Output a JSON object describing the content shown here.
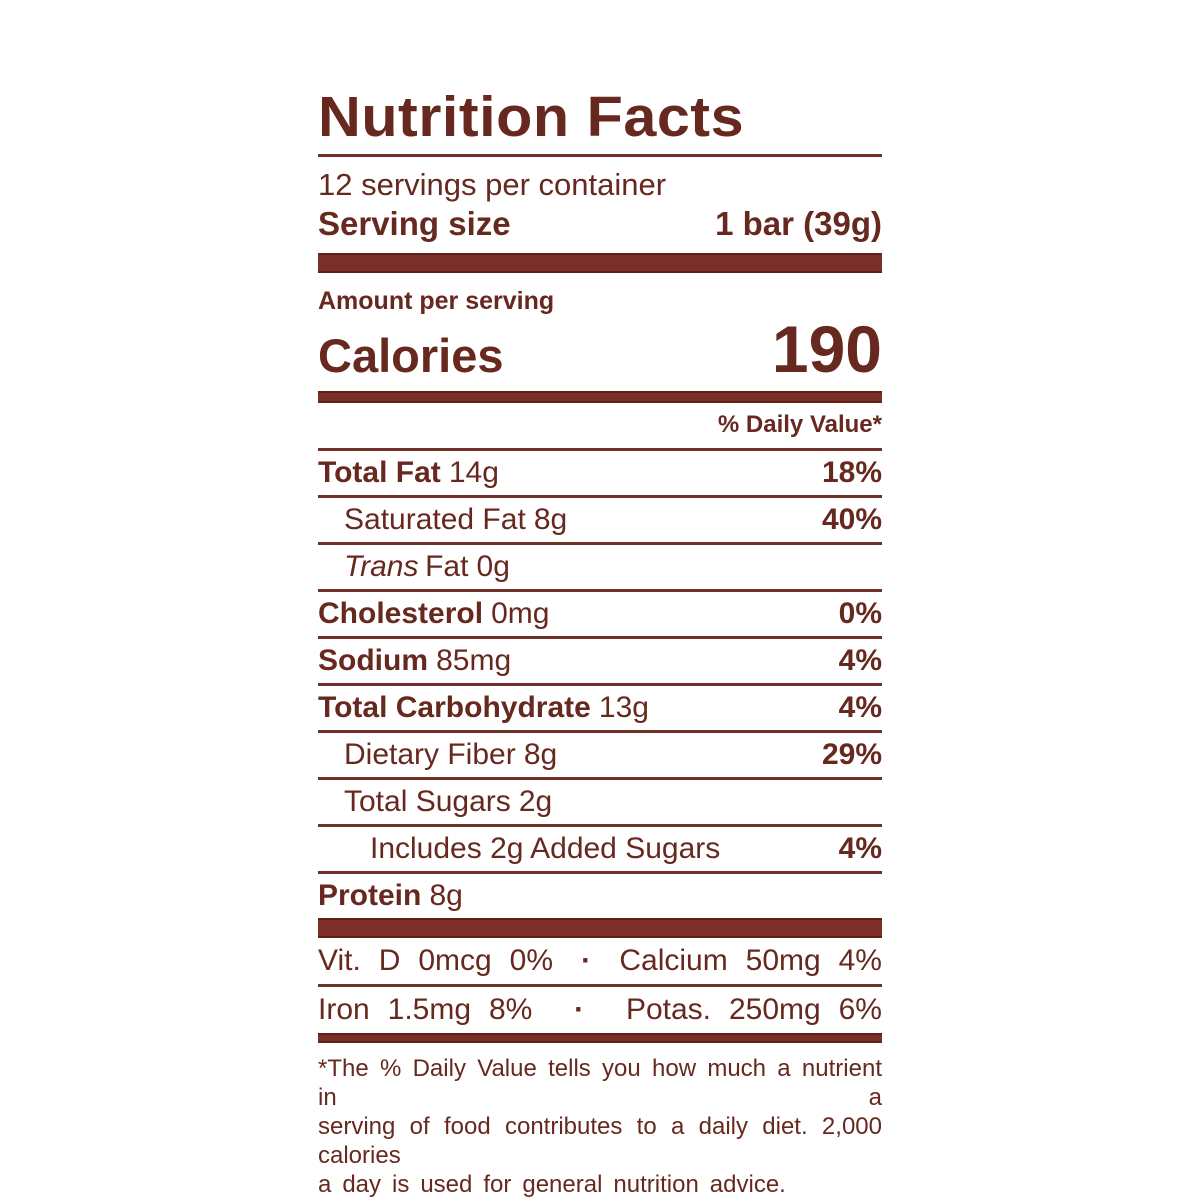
{
  "label": {
    "title": "Nutrition Facts",
    "servings_per_container": "12 servings per container",
    "serving_size_label": "Serving size",
    "serving_size_value": "1 bar (39g)",
    "amount_per_serving": "Amount per serving",
    "calories_label": "Calories",
    "calories_value": "190",
    "daily_value_header": "% Daily Value*",
    "rows": [
      {
        "name": "Total Fat",
        "amount": "14g",
        "dv": "18%"
      },
      {
        "name": "Saturated Fat",
        "amount": "8g",
        "dv": "40%"
      },
      {
        "name_italic": "Trans",
        "name": "Fat",
        "amount": "0g",
        "dv": ""
      },
      {
        "name": "Cholesterol",
        "amount": "0mg",
        "dv": "0%"
      },
      {
        "name": "Sodium",
        "amount": "85mg",
        "dv": "4%"
      },
      {
        "name": "Total Carbohydrate",
        "amount": "13g",
        "dv": "4%"
      },
      {
        "name": "Dietary Fiber",
        "amount": "8g",
        "dv": "29%"
      },
      {
        "name": "Total Sugars",
        "amount": "2g",
        "dv": ""
      },
      {
        "name": "Includes 2g Added Sugars",
        "amount": "",
        "dv": "4%"
      },
      {
        "name": "Protein",
        "amount": "8g",
        "dv": ""
      }
    ],
    "micronutrients": [
      {
        "left": "Vit. D 0mcg 0%",
        "separator": "·",
        "right": "Calcium 50mg 4%"
      },
      {
        "left": "Iron 1.5mg 8%",
        "separator": "·",
        "right": "Potas. 250mg 6%"
      }
    ],
    "footnote_lines": [
      "*The % Daily Value tells you how much a nutrient in a",
      "serving of food contributes to a daily diet. 2,000 calories",
      "a day is used for general nutrition advice."
    ]
  },
  "colors": {
    "text": "#67291F",
    "bar_fill": "#7A3026",
    "bar_edge": "#5E2018",
    "rule": "#6F3127",
    "background": "#FFFFFF"
  }
}
